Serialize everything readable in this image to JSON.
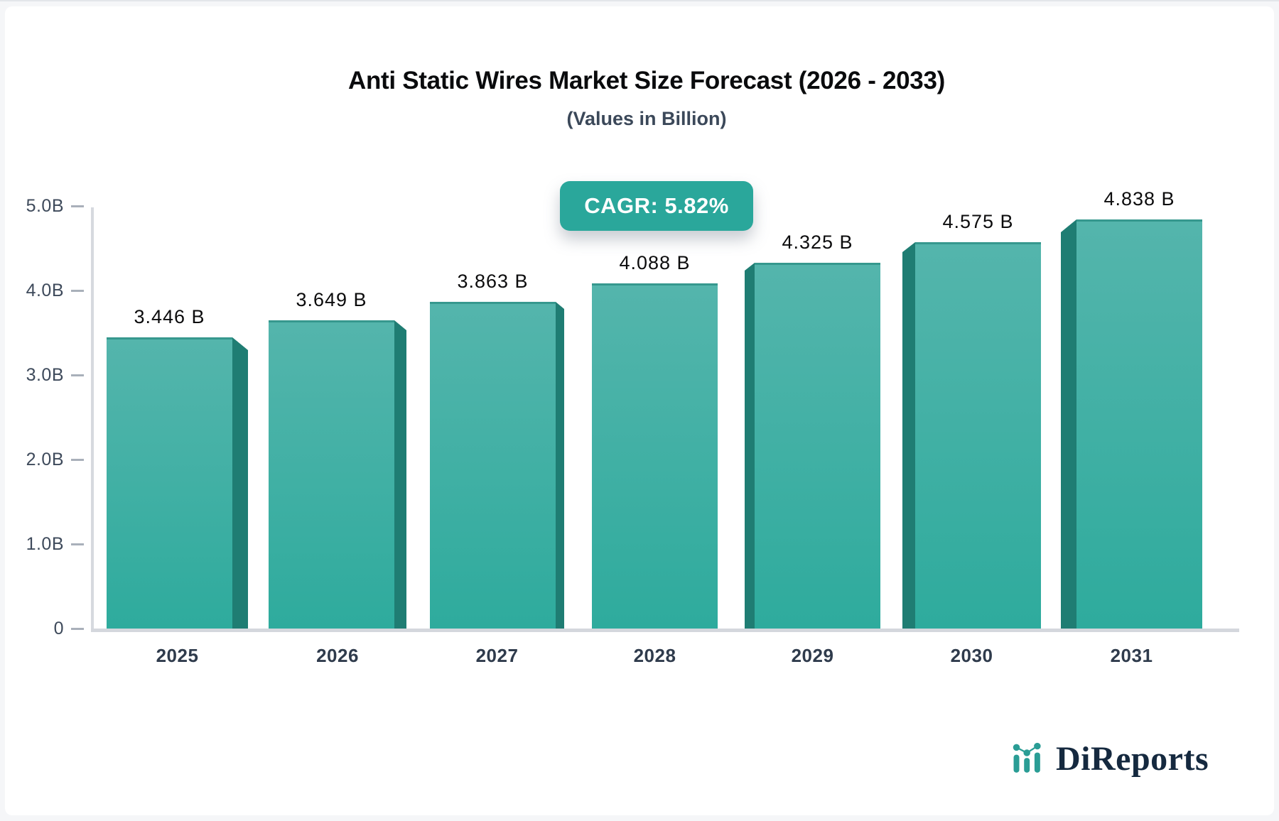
{
  "page": {
    "background": "#f5f6f8",
    "card_background": "#ffffff"
  },
  "header": {
    "title": "Anti Static Wires Market Size Forecast (2026 - 2033)",
    "subtitle": "(Values in Billion)"
  },
  "badge": {
    "label": "CAGR: 5.82%",
    "background": "#2aa79b",
    "text_color": "#ffffff"
  },
  "chart_data": {
    "type": "bar",
    "title": "Anti Static Wires Market Size Forecast (2026 - 2033)",
    "subtitle": "(Values in Billion)",
    "categories": [
      "2025",
      "2026",
      "2027",
      "2028",
      "2029",
      "2030",
      "2031"
    ],
    "values": [
      3.446,
      3.649,
      3.863,
      4.088,
      4.325,
      4.575,
      4.838
    ],
    "value_labels": [
      "3.446 B",
      "3.649 B",
      "3.863 B",
      "4.088 B",
      "4.325 B",
      "4.575 B",
      "4.838 B"
    ],
    "cagr_label": "CAGR: 5.82%",
    "unit": "Billion",
    "ylim": [
      0,
      5
    ],
    "ytick_labels": [
      "5.0B",
      "4.0B",
      "3.0B",
      "2.0B",
      "1.0B",
      "0"
    ],
    "grid": false,
    "legend": "none",
    "style": "3d-beveled-bars-center-perspective",
    "bar_color_top": "#54b5ac",
    "bar_color_bottom": "#2eab9d",
    "bar_side_color": "#1f7d73",
    "axis_color": "#d5d8de",
    "tick_color": "#a9b0ba",
    "ytick_text_color": "#3e4a5b",
    "xtick_text_color": "#2f3b4c",
    "value_label_color": "#0c0c0d"
  },
  "logo": {
    "text": "DiReports",
    "icon": "mini-bar-line-chart-icon",
    "text_color": "#15293f",
    "icon_color": "#2a9d95"
  }
}
